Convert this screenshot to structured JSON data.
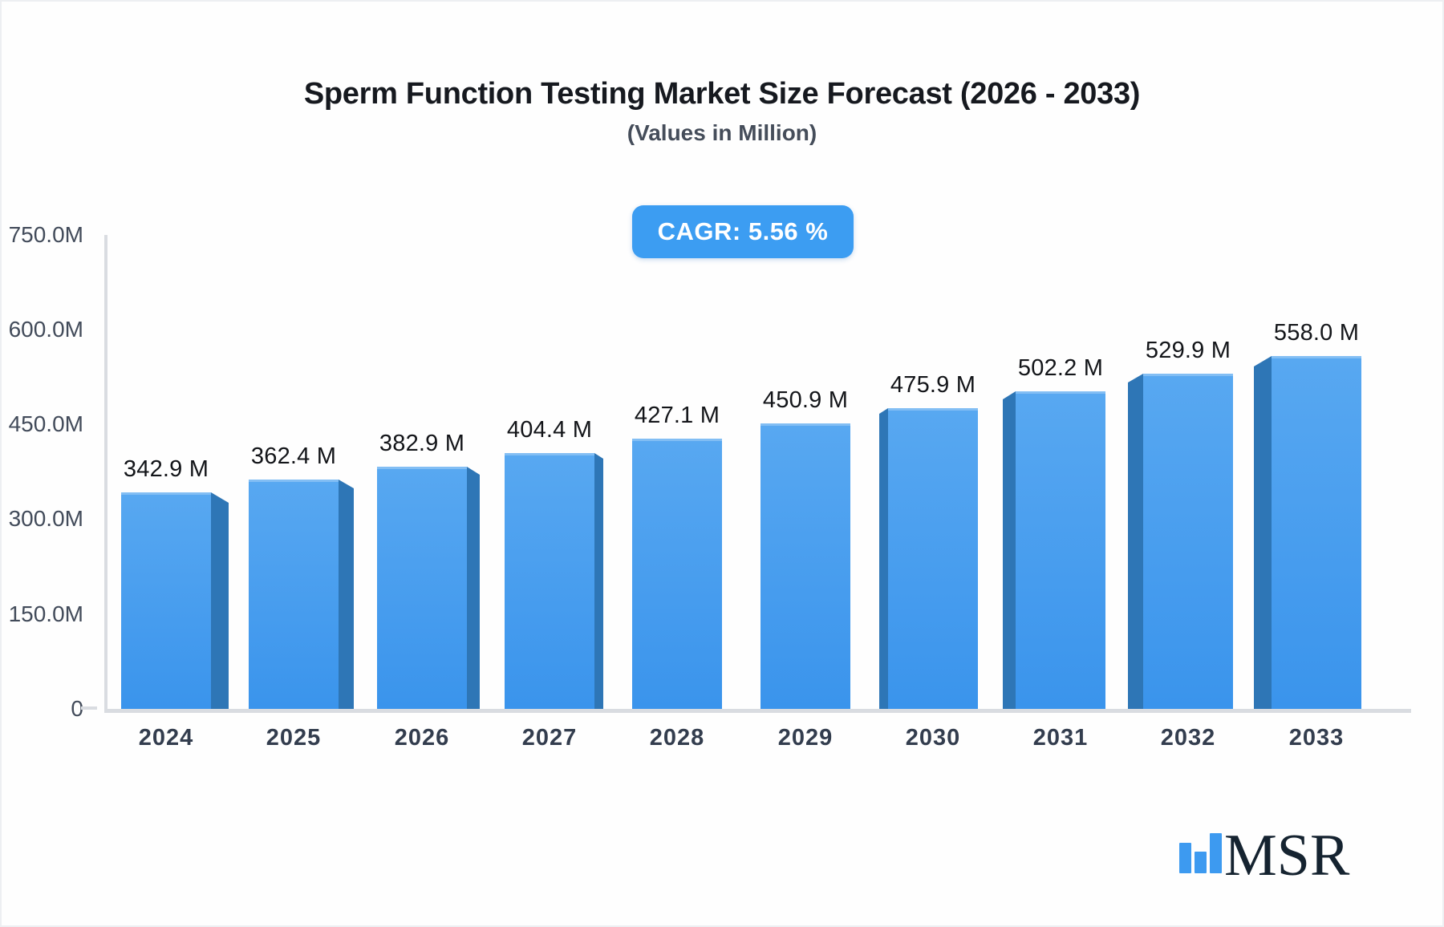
{
  "title": "Sperm Function Testing Market Size Forecast (2026 - 2033)",
  "subtitle": "(Values in Million)",
  "badge": {
    "label": "CAGR: 5.56 %"
  },
  "chart_data": {
    "type": "bar",
    "title": "Sperm Function Testing Market Size Forecast (2026 - 2033)",
    "subtitle": "(Values in Million)",
    "unit": "Million",
    "categories": [
      "2024",
      "2025",
      "2026",
      "2027",
      "2028",
      "2029",
      "2030",
      "2031",
      "2032",
      "2033"
    ],
    "values": [
      342.9,
      362.4,
      382.9,
      404.4,
      427.1,
      450.9,
      475.9,
      502.2,
      529.9,
      558.0
    ],
    "bar_labels": [
      "342.9 M",
      "362.4 M",
      "382.9 M",
      "404.4 M",
      "427.1 M",
      "450.9 M",
      "475.9 M",
      "502.2 M",
      "529.9 M",
      "558.0 M"
    ],
    "y_ticks": [
      {
        "label": "750.0M",
        "value": 750
      },
      {
        "label": "600.0M",
        "value": 600
      },
      {
        "label": "450.0M",
        "value": 450
      },
      {
        "label": "300.0M",
        "value": 300
      },
      {
        "label": "150.0M",
        "value": 150
      },
      {
        "label": "0",
        "value": 0
      }
    ],
    "ylim": [
      0,
      750
    ],
    "grid": false,
    "legend": null,
    "bar_style": "3d-bevel",
    "colors": {
      "bar_top": "#58a8f1",
      "bar_bottom": "#3a94ec",
      "bar_side": "#2e76b6",
      "axis": "#d9dce1",
      "badge_bg": "#3c9df2",
      "badge_text": "#ffffff",
      "value_label": "#131519",
      "tick_label": "#424b5a"
    }
  },
  "logo": {
    "icon": "bar-chart-icon",
    "text": "MSR",
    "bar_color": "#3d9af0",
    "text_color": "#152330"
  }
}
